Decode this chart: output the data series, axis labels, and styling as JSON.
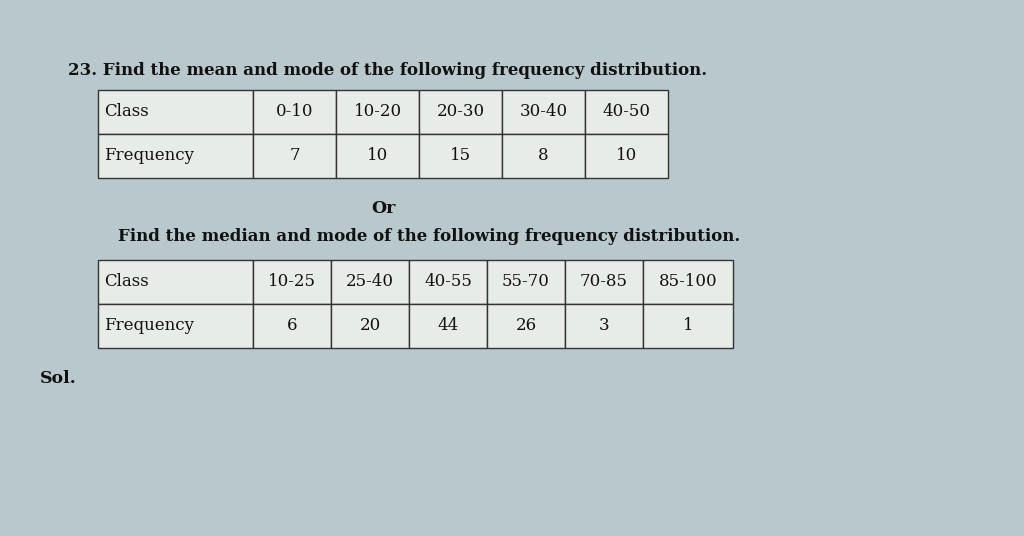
{
  "title_q": "23. Find the mean and mode of the following frequency distribution.",
  "table1_headers": [
    "Class",
    "0-10",
    "10-20",
    "20-30",
    "30-40",
    "40-50"
  ],
  "table1_row": [
    "Frequency",
    "7",
    "10",
    "15",
    "8",
    "10"
  ],
  "or_text": "Or",
  "title_q2": "Find the median and mode of the following frequency distribution.",
  "table2_headers": [
    "Class",
    "10-25",
    "25-40",
    "40-55",
    "55-70",
    "70-85",
    "85-100"
  ],
  "table2_row": [
    "Frequency",
    "6",
    "20",
    "44",
    "26",
    "3",
    "1"
  ],
  "sol_text": "Sol.",
  "bg_color": "#b8c8cc",
  "table_bg": "#e8ece8",
  "text_color": "#111111",
  "border_color": "#333333"
}
